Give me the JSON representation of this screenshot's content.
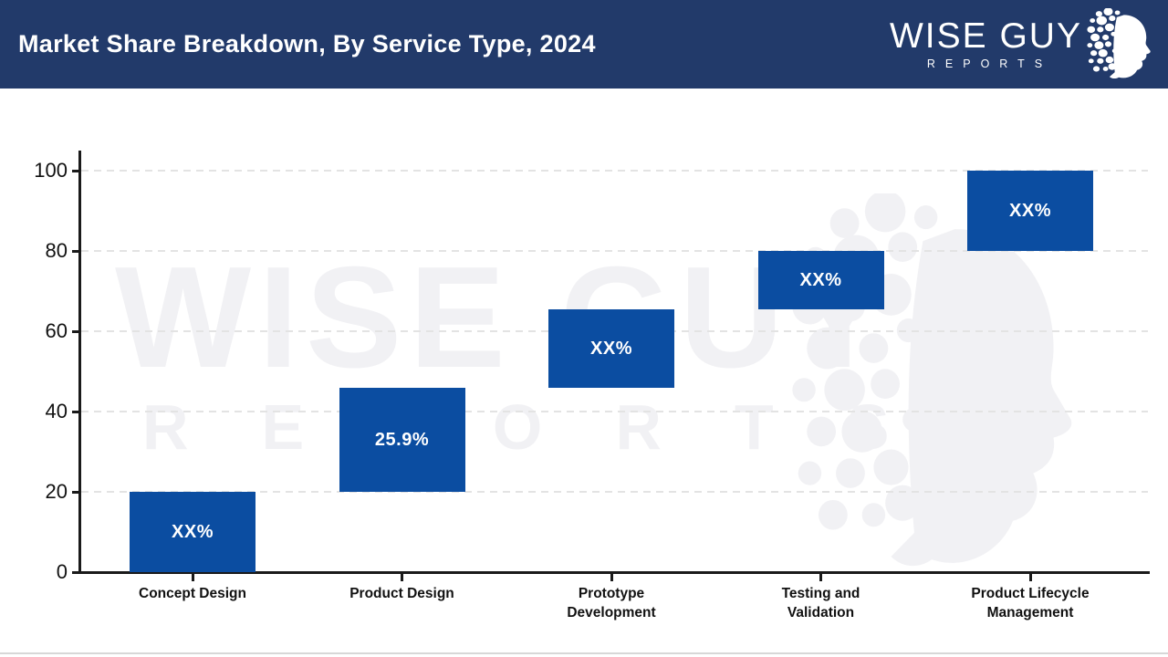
{
  "header": {
    "title": "Market Share Breakdown, By Service Type, 2024",
    "bg_color": "#223a6a",
    "logo": {
      "line1": "WISE GUY",
      "line2": "REPORTS"
    }
  },
  "watermark": {
    "line1": "WISE GUY",
    "line2": "REPORTS"
  },
  "footer": {
    "line_color": "#d7d7d7"
  },
  "chart_data": {
    "type": "bar",
    "variant": "waterfall (floating cumulative segments)",
    "title": "Market Share Breakdown, By Service Type, 2024",
    "categories": [
      "Concept Design",
      "Product Design",
      "Prototype Development",
      "Testing and Validation",
      "Product Lifecycle Management"
    ],
    "segments": [
      {
        "category": "Concept Design",
        "start": 0,
        "end": 20,
        "label": "XX%"
      },
      {
        "category": "Product Design",
        "start": 20,
        "end": 45.9,
        "label": "25.9%"
      },
      {
        "category": "Prototype Development",
        "start": 45.9,
        "end": 65.4,
        "label": "XX%"
      },
      {
        "category": "Testing and Validation",
        "start": 65.4,
        "end": 80,
        "label": "XX%"
      },
      {
        "category": "Product Lifecycle Management",
        "start": 80,
        "end": 100,
        "label": "XX%"
      }
    ],
    "y_ticks": [
      0,
      20,
      40,
      60,
      80,
      100
    ],
    "ylim": [
      0,
      105
    ],
    "xlabel": "",
    "ylabel": "",
    "grid": "horizontal dashed",
    "legend": "none",
    "bar_color": "#0b4da1",
    "bar_label_color": "#ffffff",
    "axis_color": "#1a1a1a"
  }
}
